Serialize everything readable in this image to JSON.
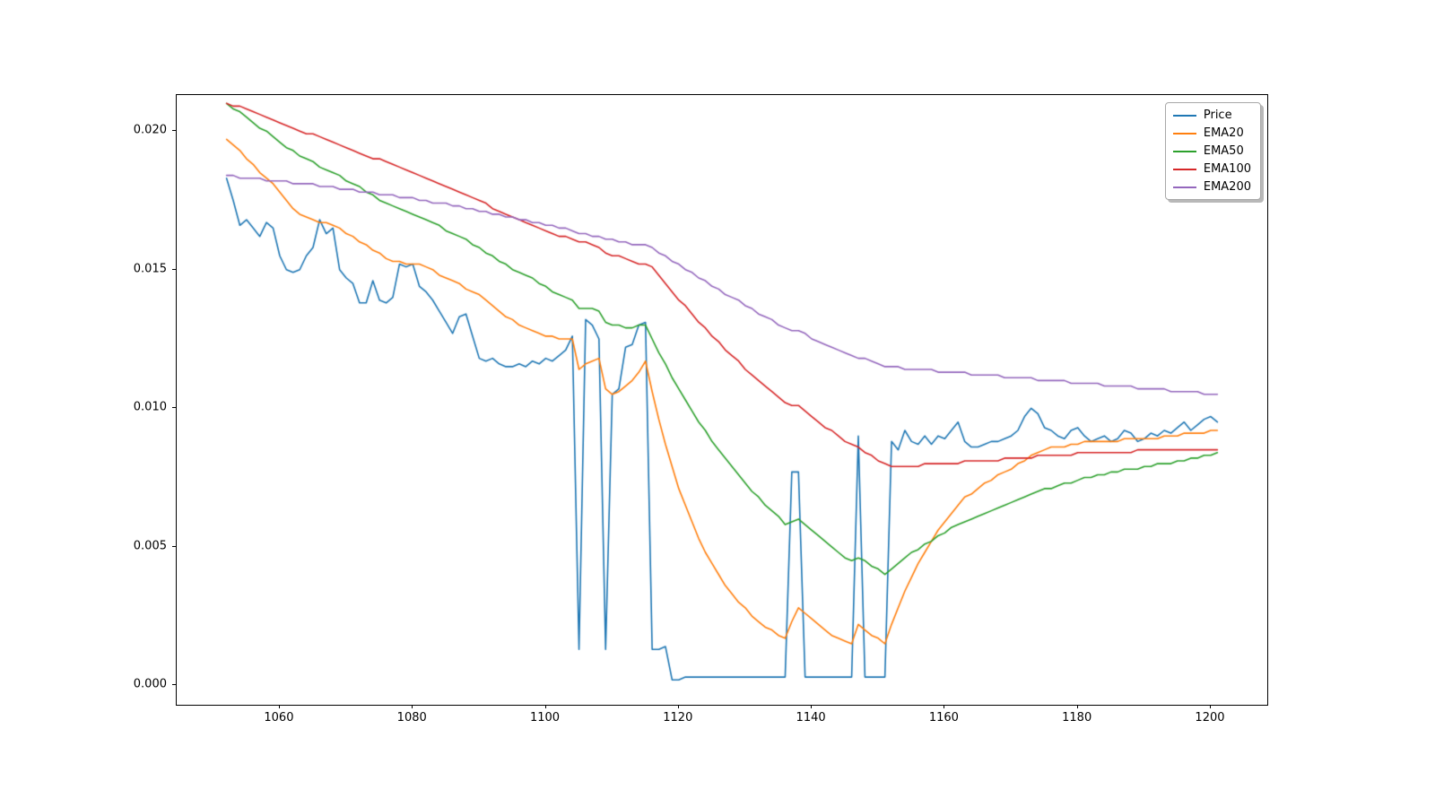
{
  "figure": {
    "background": "#ffffff"
  },
  "chart_data": {
    "type": "line",
    "title": "",
    "xlabel": "",
    "ylabel": "",
    "grid": false,
    "legend_position": "upper right",
    "xlim": [
      1044.5,
      1208.5
    ],
    "ylim": [
      -0.0007,
      0.0213
    ],
    "xticks": [
      1060,
      1080,
      1100,
      1120,
      1140,
      1160,
      1180,
      1200
    ],
    "yticks": [
      0.0,
      0.005,
      0.01,
      0.015,
      0.02
    ],
    "ytick_labels": [
      "0.000",
      "0.005",
      "0.010",
      "0.015",
      "0.020"
    ],
    "x": {
      "start": 1052,
      "step": 1
    },
    "series": [
      {
        "name": "Price",
        "color": "#1f77b4",
        "values": [
          0.0183,
          0.0175,
          0.0166,
          0.0168,
          0.0165,
          0.0162,
          0.0167,
          0.0165,
          0.0155,
          0.015,
          0.0149,
          0.015,
          0.0155,
          0.0158,
          0.0168,
          0.0163,
          0.0165,
          0.015,
          0.0147,
          0.0145,
          0.0138,
          0.0138,
          0.0146,
          0.0139,
          0.0138,
          0.014,
          0.0152,
          0.0151,
          0.0152,
          0.0144,
          0.0142,
          0.0139,
          0.0135,
          0.0131,
          0.0127,
          0.0133,
          0.0134,
          0.0126,
          0.0118,
          0.0117,
          0.0118,
          0.0116,
          0.0115,
          0.0115,
          0.0116,
          0.0115,
          0.0117,
          0.0116,
          0.0118,
          0.0117,
          0.0119,
          0.0121,
          0.0126,
          0.0013,
          0.0132,
          0.013,
          0.0125,
          0.0013,
          0.0105,
          0.0107,
          0.0122,
          0.0123,
          0.013,
          0.0131,
          0.0013,
          0.0013,
          0.0014,
          0.0002,
          0.0002,
          0.0003,
          0.0003,
          0.0003,
          0.0003,
          0.0003,
          0.0003,
          0.0003,
          0.0003,
          0.0003,
          0.0003,
          0.0003,
          0.0003,
          0.0003,
          0.0003,
          0.0003,
          0.0003,
          0.0077,
          0.0077,
          0.0003,
          0.0003,
          0.0003,
          0.0003,
          0.0003,
          0.0003,
          0.0003,
          0.0003,
          0.009,
          0.0003,
          0.0003,
          0.0003,
          0.0003,
          0.0088,
          0.0085,
          0.0092,
          0.0088,
          0.0087,
          0.009,
          0.0087,
          0.009,
          0.0089,
          0.0092,
          0.0095,
          0.0088,
          0.0086,
          0.0086,
          0.0087,
          0.0088,
          0.0088,
          0.0089,
          0.009,
          0.0092,
          0.0097,
          0.01,
          0.0098,
          0.0093,
          0.0092,
          0.009,
          0.0089,
          0.0092,
          0.0093,
          0.009,
          0.0088,
          0.0089,
          0.009,
          0.0088,
          0.0089,
          0.0092,
          0.0091,
          0.0088,
          0.0089,
          0.0091,
          0.009,
          0.0092,
          0.0091,
          0.0093,
          0.0095,
          0.0092,
          0.0094,
          0.0096,
          0.0097,
          0.0095
        ]
      },
      {
        "name": "EMA20",
        "color": "#ff7f0e",
        "values": [
          0.0197,
          0.0195,
          0.0193,
          0.019,
          0.0188,
          0.0185,
          0.0183,
          0.0181,
          0.0178,
          0.0175,
          0.0172,
          0.017,
          0.0169,
          0.0168,
          0.0167,
          0.0167,
          0.0166,
          0.0165,
          0.0163,
          0.0162,
          0.016,
          0.0159,
          0.0157,
          0.0156,
          0.0154,
          0.0153,
          0.0153,
          0.0152,
          0.0152,
          0.0152,
          0.0151,
          0.015,
          0.0148,
          0.0147,
          0.0146,
          0.0145,
          0.0143,
          0.0142,
          0.0141,
          0.0139,
          0.0137,
          0.0135,
          0.0133,
          0.0132,
          0.013,
          0.0129,
          0.0128,
          0.0127,
          0.0126,
          0.0126,
          0.0125,
          0.0125,
          0.0125,
          0.0114,
          0.0116,
          0.0117,
          0.0118,
          0.0107,
          0.0105,
          0.0106,
          0.0108,
          0.011,
          0.0113,
          0.0117,
          0.0106,
          0.0096,
          0.0087,
          0.0079,
          0.0071,
          0.0065,
          0.0059,
          0.0053,
          0.0048,
          0.0044,
          0.004,
          0.0036,
          0.0033,
          0.003,
          0.0028,
          0.0025,
          0.0023,
          0.0021,
          0.002,
          0.0018,
          0.0017,
          0.0023,
          0.0028,
          0.0026,
          0.0024,
          0.0022,
          0.002,
          0.0018,
          0.0017,
          0.0016,
          0.0015,
          0.0022,
          0.002,
          0.0018,
          0.0017,
          0.0015,
          0.0022,
          0.0028,
          0.0034,
          0.0039,
          0.0044,
          0.0048,
          0.0052,
          0.0056,
          0.0059,
          0.0062,
          0.0065,
          0.0068,
          0.0069,
          0.0071,
          0.0073,
          0.0074,
          0.0076,
          0.0077,
          0.0078,
          0.008,
          0.0081,
          0.0083,
          0.0084,
          0.0085,
          0.0086,
          0.0086,
          0.0086,
          0.0087,
          0.0087,
          0.0088,
          0.0088,
          0.0088,
          0.0088,
          0.0088,
          0.0088,
          0.0089,
          0.0089,
          0.0089,
          0.0089,
          0.0089,
          0.0089,
          0.009,
          0.009,
          0.009,
          0.0091,
          0.0091,
          0.0091,
          0.0091,
          0.0092,
          0.0092
        ]
      },
      {
        "name": "EMA50",
        "color": "#2ca02c",
        "values": [
          0.021,
          0.0208,
          0.0207,
          0.0205,
          0.0203,
          0.0201,
          0.02,
          0.0198,
          0.0196,
          0.0194,
          0.0193,
          0.0191,
          0.019,
          0.0189,
          0.0187,
          0.0186,
          0.0185,
          0.0184,
          0.0182,
          0.0181,
          0.018,
          0.0178,
          0.0177,
          0.0175,
          0.0174,
          0.0173,
          0.0172,
          0.0171,
          0.017,
          0.0169,
          0.0168,
          0.0167,
          0.0166,
          0.0164,
          0.0163,
          0.0162,
          0.0161,
          0.0159,
          0.0158,
          0.0156,
          0.0155,
          0.0153,
          0.0152,
          0.015,
          0.0149,
          0.0148,
          0.0147,
          0.0145,
          0.0144,
          0.0142,
          0.0141,
          0.014,
          0.0139,
          0.0136,
          0.0136,
          0.0136,
          0.0135,
          0.0131,
          0.013,
          0.013,
          0.0129,
          0.0129,
          0.013,
          0.013,
          0.0125,
          0.012,
          0.0116,
          0.0111,
          0.0107,
          0.0103,
          0.0099,
          0.0095,
          0.0092,
          0.0088,
          0.0085,
          0.0082,
          0.0079,
          0.0076,
          0.0073,
          0.007,
          0.0068,
          0.0065,
          0.0063,
          0.0061,
          0.0058,
          0.0059,
          0.006,
          0.0058,
          0.0056,
          0.0054,
          0.0052,
          0.005,
          0.0048,
          0.0046,
          0.0045,
          0.0046,
          0.0045,
          0.0043,
          0.0042,
          0.004,
          0.0042,
          0.0044,
          0.0046,
          0.0048,
          0.0049,
          0.0051,
          0.0052,
          0.0054,
          0.0055,
          0.0057,
          0.0058,
          0.0059,
          0.006,
          0.0061,
          0.0062,
          0.0063,
          0.0064,
          0.0065,
          0.0066,
          0.0067,
          0.0068,
          0.0069,
          0.007,
          0.0071,
          0.0071,
          0.0072,
          0.0073,
          0.0073,
          0.0074,
          0.0075,
          0.0075,
          0.0076,
          0.0076,
          0.0077,
          0.0077,
          0.0078,
          0.0078,
          0.0078,
          0.0079,
          0.0079,
          0.008,
          0.008,
          0.008,
          0.0081,
          0.0081,
          0.0082,
          0.0082,
          0.0083,
          0.0083,
          0.0084
        ]
      },
      {
        "name": "EMA100",
        "color": "#d62728",
        "values": [
          0.021,
          0.0209,
          0.0209,
          0.0208,
          0.0207,
          0.0206,
          0.0205,
          0.0204,
          0.0203,
          0.0202,
          0.0201,
          0.02,
          0.0199,
          0.0199,
          0.0198,
          0.0197,
          0.0196,
          0.0195,
          0.0194,
          0.0193,
          0.0192,
          0.0191,
          0.019,
          0.019,
          0.0189,
          0.0188,
          0.0187,
          0.0186,
          0.0185,
          0.0184,
          0.0183,
          0.0182,
          0.0181,
          0.018,
          0.0179,
          0.0178,
          0.0177,
          0.0176,
          0.0175,
          0.0174,
          0.0172,
          0.0171,
          0.017,
          0.0169,
          0.0168,
          0.0167,
          0.0166,
          0.0165,
          0.0164,
          0.0163,
          0.0162,
          0.0162,
          0.0161,
          0.016,
          0.016,
          0.0159,
          0.0158,
          0.0156,
          0.0155,
          0.0155,
          0.0154,
          0.0153,
          0.0152,
          0.0152,
          0.0151,
          0.0148,
          0.0145,
          0.0142,
          0.0139,
          0.0137,
          0.0134,
          0.0131,
          0.0129,
          0.0126,
          0.0124,
          0.0121,
          0.0119,
          0.0117,
          0.0114,
          0.0112,
          0.011,
          0.0108,
          0.0106,
          0.0104,
          0.0102,
          0.0101,
          0.0101,
          0.0099,
          0.0097,
          0.0095,
          0.0093,
          0.0092,
          0.009,
          0.0088,
          0.0087,
          0.0086,
          0.0084,
          0.0083,
          0.0081,
          0.008,
          0.0079,
          0.0079,
          0.0079,
          0.0079,
          0.0079,
          0.008,
          0.008,
          0.008,
          0.008,
          0.008,
          0.008,
          0.0081,
          0.0081,
          0.0081,
          0.0081,
          0.0081,
          0.0081,
          0.0082,
          0.0082,
          0.0082,
          0.0082,
          0.0082,
          0.0083,
          0.0083,
          0.0083,
          0.0083,
          0.0083,
          0.0083,
          0.0084,
          0.0084,
          0.0084,
          0.0084,
          0.0084,
          0.0084,
          0.0084,
          0.0084,
          0.0084,
          0.0085,
          0.0085,
          0.0085,
          0.0085,
          0.0085,
          0.0085,
          0.0085,
          0.0085,
          0.0085,
          0.0085,
          0.0085,
          0.0085,
          0.0085
        ]
      },
      {
        "name": "EMA200",
        "color": "#9467bd",
        "values": [
          0.0184,
          0.0184,
          0.0183,
          0.0183,
          0.0183,
          0.0183,
          0.0182,
          0.0182,
          0.0182,
          0.0182,
          0.0181,
          0.0181,
          0.0181,
          0.0181,
          0.018,
          0.018,
          0.018,
          0.0179,
          0.0179,
          0.0179,
          0.0178,
          0.0178,
          0.0178,
          0.0177,
          0.0177,
          0.0177,
          0.0176,
          0.0176,
          0.0176,
          0.0175,
          0.0175,
          0.0174,
          0.0174,
          0.0174,
          0.0173,
          0.0173,
          0.0172,
          0.0172,
          0.0171,
          0.0171,
          0.017,
          0.017,
          0.0169,
          0.0169,
          0.0168,
          0.0168,
          0.0167,
          0.0167,
          0.0166,
          0.0166,
          0.0165,
          0.0165,
          0.0164,
          0.0163,
          0.0163,
          0.0162,
          0.0162,
          0.0161,
          0.0161,
          0.016,
          0.016,
          0.0159,
          0.0159,
          0.0159,
          0.0158,
          0.0156,
          0.0155,
          0.0153,
          0.0152,
          0.015,
          0.0149,
          0.0147,
          0.0146,
          0.0144,
          0.0143,
          0.0141,
          0.014,
          0.0139,
          0.0137,
          0.0136,
          0.0134,
          0.0133,
          0.0132,
          0.013,
          0.0129,
          0.0128,
          0.0128,
          0.0127,
          0.0125,
          0.0124,
          0.0123,
          0.0122,
          0.0121,
          0.012,
          0.0119,
          0.0118,
          0.0118,
          0.0117,
          0.0116,
          0.0115,
          0.0115,
          0.0115,
          0.0114,
          0.0114,
          0.0114,
          0.0114,
          0.0114,
          0.0113,
          0.0113,
          0.0113,
          0.0113,
          0.0113,
          0.0112,
          0.0112,
          0.0112,
          0.0112,
          0.0112,
          0.0111,
          0.0111,
          0.0111,
          0.0111,
          0.0111,
          0.011,
          0.011,
          0.011,
          0.011,
          0.011,
          0.0109,
          0.0109,
          0.0109,
          0.0109,
          0.0109,
          0.0108,
          0.0108,
          0.0108,
          0.0108,
          0.0108,
          0.0107,
          0.0107,
          0.0107,
          0.0107,
          0.0107,
          0.0106,
          0.0106,
          0.0106,
          0.0106,
          0.0106,
          0.0105,
          0.0105,
          0.0105
        ]
      }
    ]
  }
}
